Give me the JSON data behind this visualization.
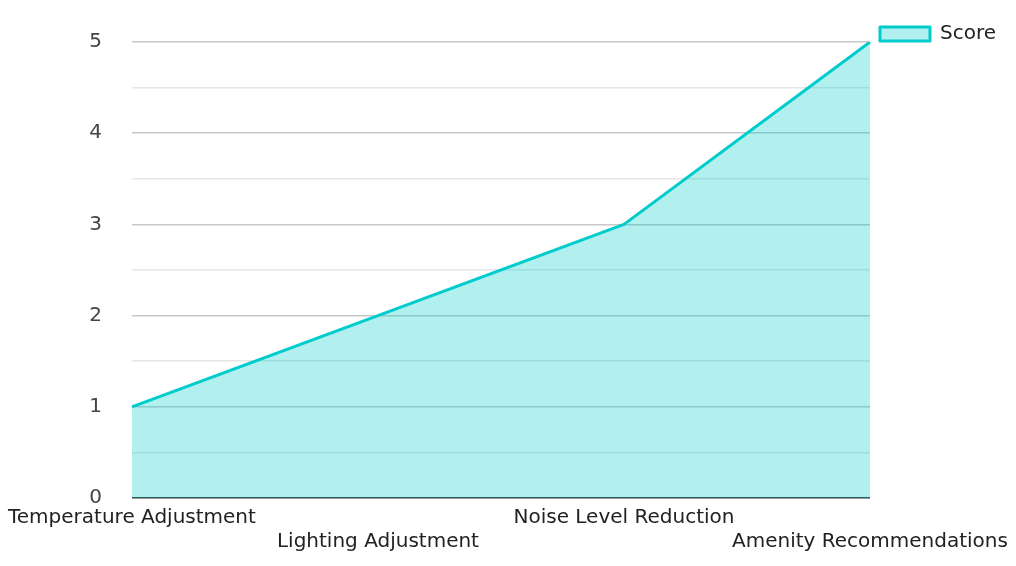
{
  "chart_data": {
    "type": "area",
    "categories": [
      "Temperature Adjustment",
      "Lighting Adjustment",
      "Noise Level Reduction",
      "Amenity Recommendations"
    ],
    "series": [
      {
        "name": "Score",
        "color": "#00cccc",
        "values": [
          1,
          2,
          3,
          5
        ]
      }
    ],
    "ylim": [
      0,
      5
    ],
    "yticks": [
      0,
      {
        "value": 0.5,
        "label": null
      },
      1,
      {
        "value": 1.5,
        "label": null
      },
      2,
      {
        "value": 2.5,
        "label": null
      },
      3,
      {
        "value": 3.5,
        "label": null
      },
      4,
      {
        "value": 4.5,
        "label": null
      },
      5
    ],
    "grid": "y",
    "legend": "top right"
  }
}
